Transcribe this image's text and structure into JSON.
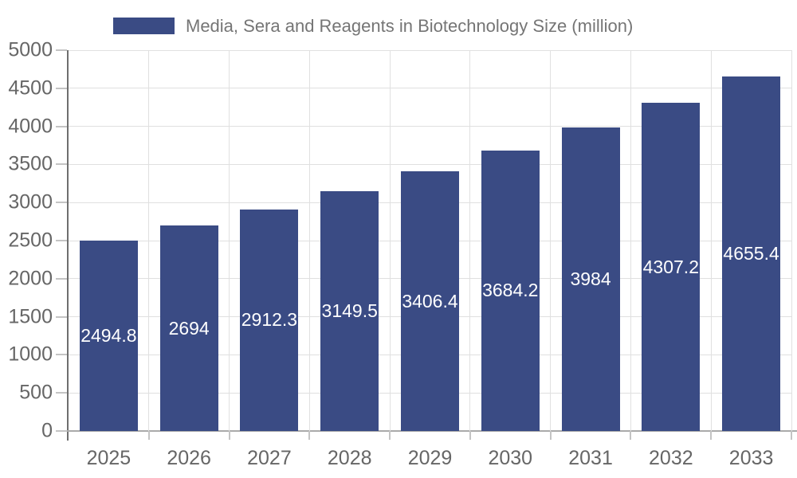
{
  "chart_data": {
    "type": "bar",
    "title": "Media, Sera and Reagents in Biotechnology Size (million)",
    "legend": {
      "label": "Media, Sera and Reagents in Biotechnology Size (million)"
    },
    "categories": [
      "2025",
      "2026",
      "2027",
      "2028",
      "2029",
      "2030",
      "2031",
      "2032",
      "2033"
    ],
    "values": [
      2494.8,
      2694,
      2912.3,
      3149.5,
      3406.4,
      3684.2,
      3984,
      4307.2,
      4655.4
    ],
    "value_labels": [
      "2494.8",
      "2694",
      "2912.3",
      "3149.5",
      "3406.4",
      "3684.2",
      "3984",
      "4307.2",
      "4655.4"
    ],
    "xlabel": "",
    "ylabel": "",
    "ylim": [
      0,
      5000
    ],
    "ytick_step": 500,
    "yticks": [
      0,
      500,
      1000,
      1500,
      2000,
      2500,
      3000,
      3500,
      4000,
      4500,
      5000
    ],
    "ytick_labels": [
      "0",
      "500",
      "1000",
      "1500",
      "2000",
      "2500",
      "3000",
      "3500",
      "4000",
      "4500",
      "5000"
    ],
    "grid": true,
    "legend_position": "top",
    "value_label_position": "center-inside"
  },
  "colors": {
    "bar_fill": "#3A4B84",
    "bar_value_text": "#ffffff",
    "legend_text": "#757575",
    "tick_text": "#666666",
    "gridline": "#e0e0e0",
    "tick_mark": "#c4c4c4",
    "y_axis_line": "#6e6e6e",
    "x_axis_line": "#aaaaaa",
    "background": "#ffffff"
  }
}
